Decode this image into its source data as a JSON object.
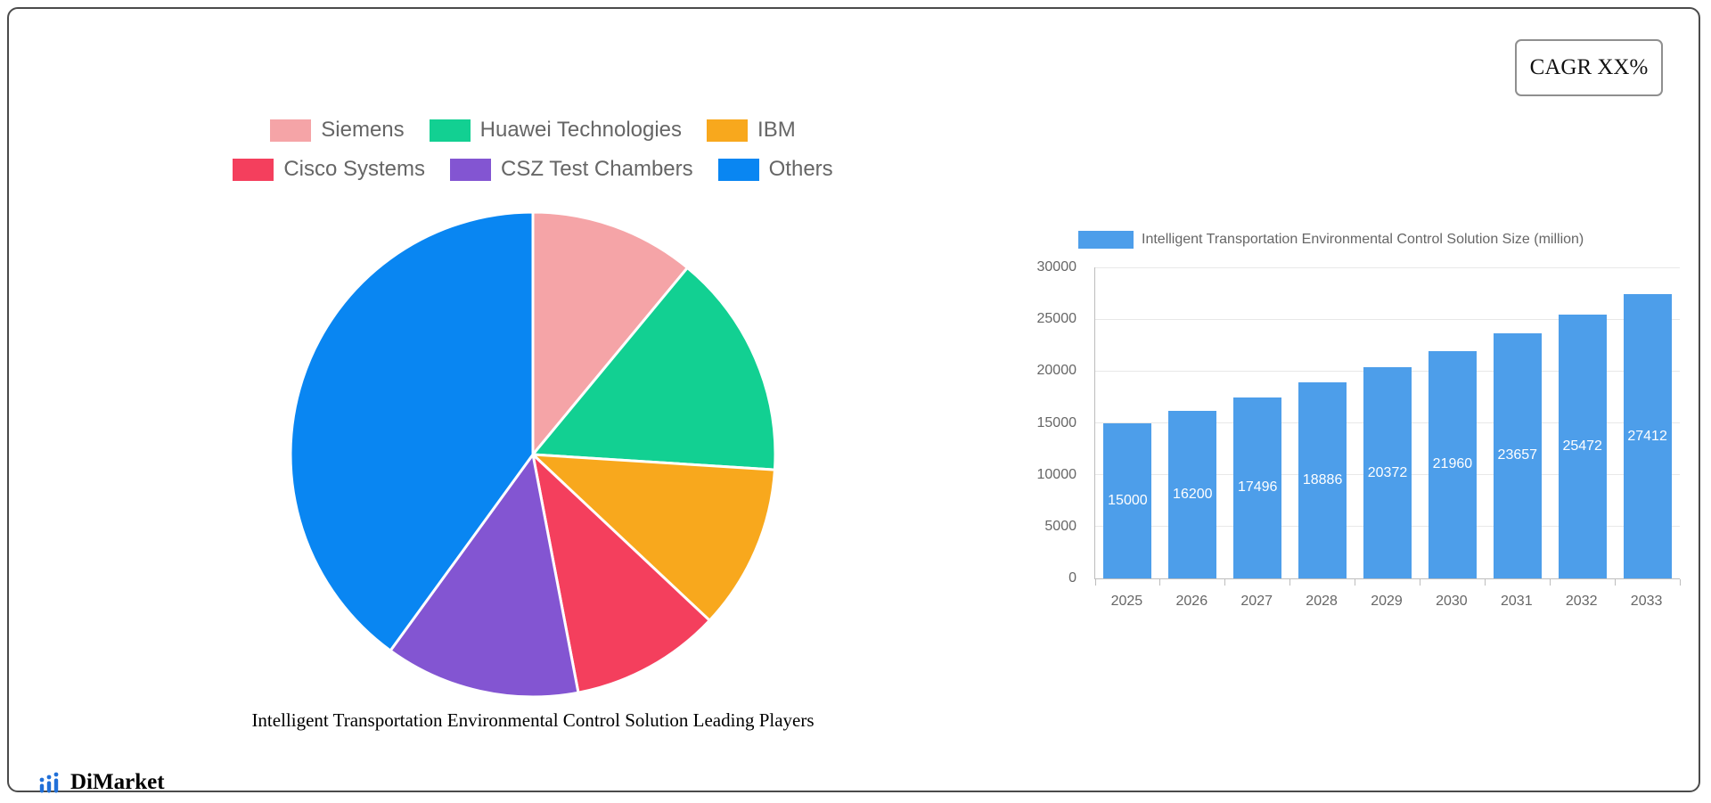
{
  "cagr_badge": {
    "label": "CAGR XX%"
  },
  "logo": {
    "text": "DiMarket",
    "icon_color": "#2170d8"
  },
  "colors": {
    "card_border": "#4b4b4b",
    "legend_text": "#666666",
    "axis_text": "#666666",
    "grid": "#e8e8e8",
    "axis_line": "#bdbdbd"
  },
  "chart_data": [
    {
      "type": "pie",
      "title": "Intelligent Transportation Environmental Control Solution Leading Players",
      "legend_position": "top",
      "direction": "clockwise",
      "start_angle_deg": 0,
      "series": [
        {
          "name": "Siemens",
          "value": 11,
          "color": "#f5a4a7"
        },
        {
          "name": "Huawei Technologies",
          "value": 15,
          "color": "#12d092"
        },
        {
          "name": "IBM",
          "value": 11,
          "color": "#f8a81d"
        },
        {
          "name": "Cisco Systems",
          "value": 10,
          "color": "#f43f5d"
        },
        {
          "name": "CSZ Test Chambers",
          "value": 13,
          "color": "#8355d2"
        },
        {
          "name": "Others",
          "value": 40,
          "color": "#0986f2"
        }
      ]
    },
    {
      "type": "bar",
      "legend_label": "Intelligent Transportation Environmental Control Solution Size (million)",
      "categories": [
        "2025",
        "2026",
        "2027",
        "2028",
        "2029",
        "2030",
        "2031",
        "2032",
        "2033"
      ],
      "values": [
        15000,
        16200,
        17496,
        18886,
        20372,
        21960,
        23657,
        25472,
        27412
      ],
      "ylim": [
        0,
        30000
      ],
      "yticks": [
        0,
        5000,
        10000,
        15000,
        20000,
        25000,
        30000
      ],
      "bar_color": "#4d9eea",
      "grid": true,
      "value_labels": "inside-white"
    }
  ]
}
